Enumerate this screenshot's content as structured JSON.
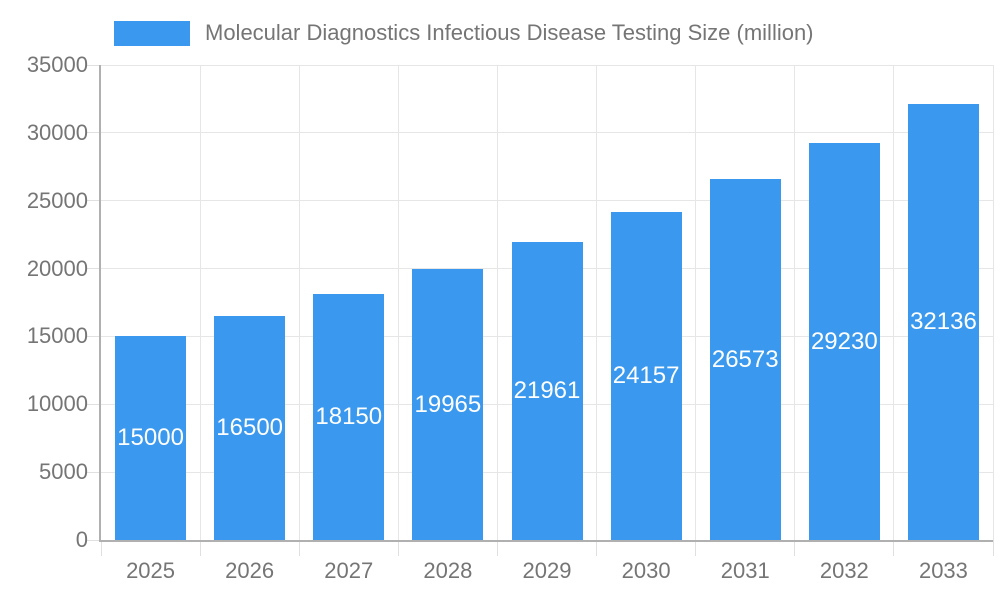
{
  "chart_data": {
    "type": "bar",
    "title": "Molecular Diagnostics Infectious Disease Testing Size (million)",
    "legend_position": "top",
    "xlabel": "",
    "ylabel": "",
    "categories": [
      "2025",
      "2026",
      "2027",
      "2028",
      "2029",
      "2030",
      "2031",
      "2032",
      "2033"
    ],
    "values": [
      15000,
      16500,
      18150,
      19965,
      21961,
      24157,
      26573,
      29230,
      32136
    ],
    "bar_value_labels": [
      "15000",
      "16500",
      "18150",
      "19965",
      "21961",
      "24157",
      "26573",
      "29230",
      "32136"
    ],
    "ylim": [
      0,
      35000
    ],
    "ytick_interval": 5000,
    "ytick_labels": [
      "0",
      "5000",
      "10000",
      "15000",
      "20000",
      "25000",
      "30000",
      "35000"
    ],
    "grid": true,
    "colors": {
      "bar": "#3a99ee",
      "bar_value_text": "#ffffff",
      "grid_line": "#e6e6e6",
      "tick_line": "#e0e0e0",
      "axis_line": "#b0b0b0",
      "axis_text": "#757575",
      "legend_text": "#757575",
      "background": "#ffffff"
    }
  }
}
